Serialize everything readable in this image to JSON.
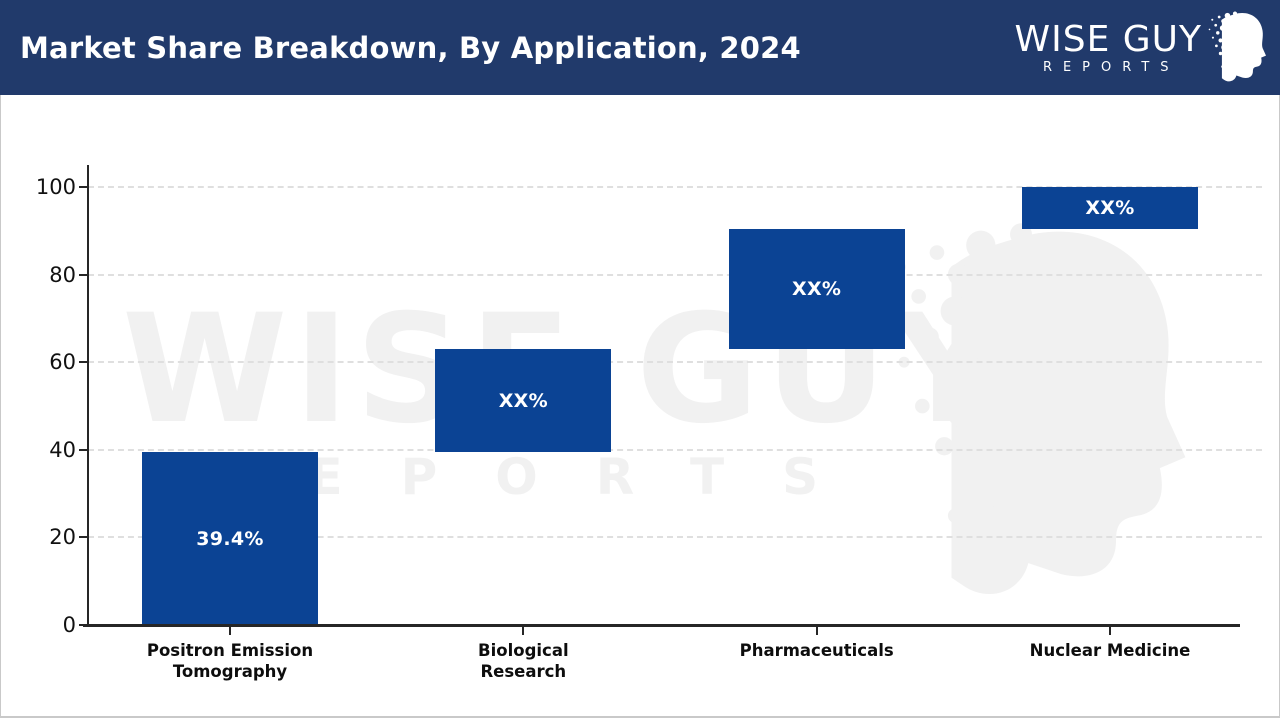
{
  "header": {
    "title": "Market Share Breakdown, By Application, 2024",
    "logo": {
      "line1": "WISE GUY",
      "line2": "REPORTS"
    }
  },
  "watermark": {
    "line1": "WISE GUY",
    "line2": "REPORTS"
  },
  "colors": {
    "header_bg": "#213a6b",
    "bar": "#0b4394",
    "bar_label_text": "#ffffff",
    "axis": "#262626",
    "gridline": "#dfdfdf",
    "watermark": "#f1f1f1"
  },
  "chart_data": {
    "type": "bar",
    "subtype": "waterfall-stacked-percentage",
    "title": "Market Share Breakdown, By Application, 2024",
    "xlabel": "",
    "ylabel": "",
    "ylim": [
      0,
      105
    ],
    "yticks": [
      0,
      20,
      40,
      60,
      80,
      100
    ],
    "grid": "horizontal-dashed",
    "legend": "none",
    "categories": [
      {
        "label": "Positron Emission Tomography",
        "lines": [
          "Positron Emission",
          "Tomography"
        ]
      },
      {
        "label": "Biological Research",
        "lines": [
          "Biological",
          "Research"
        ]
      },
      {
        "label": "Pharmaceuticals",
        "lines": [
          "Pharmaceuticals"
        ]
      },
      {
        "label": "Nuclear Medicine",
        "lines": [
          "Nuclear Medicine"
        ]
      }
    ],
    "segments": [
      {
        "category": "Positron Emission Tomography",
        "start": 0,
        "end": 39.4,
        "value": 39.4,
        "value_label": "39.4%"
      },
      {
        "category": "Biological Research",
        "start": 39.4,
        "end": 63,
        "value": 23.6,
        "value_label": "XX%"
      },
      {
        "category": "Pharmaceuticals",
        "start": 63,
        "end": 90.5,
        "value": 27.5,
        "value_label": "XX%"
      },
      {
        "category": "Nuclear Medicine",
        "start": 90.5,
        "end": 100,
        "value": 9.5,
        "value_label": "XX%"
      }
    ]
  }
}
